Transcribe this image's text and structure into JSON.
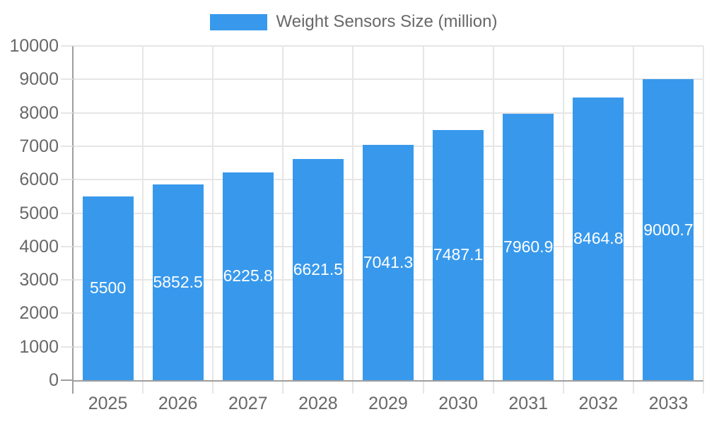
{
  "chart_data": {
    "type": "bar",
    "title": "Weight Sensors Size (million)",
    "legend": {
      "position": "top",
      "label": "Weight Sensors Size (million)"
    },
    "categories": [
      "2025",
      "2026",
      "2027",
      "2028",
      "2029",
      "2030",
      "2031",
      "2032",
      "2033"
    ],
    "series": [
      {
        "name": "Weight Sensors Size (million)",
        "values": [
          5500,
          5852.5,
          6225.8,
          6621.5,
          7041.3,
          7487.1,
          7960.9,
          8464.8,
          9000.7
        ]
      }
    ],
    "data_labels": [
      "5500",
      "5852.5",
      "6225.8",
      "6621.5",
      "7041.3",
      "7487.1",
      "7960.9",
      "8464.8",
      "9000.7"
    ],
    "xlabel": "",
    "ylabel": "",
    "ylim": [
      0,
      10000
    ],
    "yticks": [
      0,
      1000,
      2000,
      3000,
      4000,
      5000,
      6000,
      7000,
      8000,
      9000,
      10000
    ],
    "grid": true,
    "colors": {
      "bar": "#3899EC",
      "data_label": "#FFFFFF",
      "grid": "#E6E6E6",
      "axis": "#9E9E9E",
      "tick_label": "#686868",
      "legend_label": "#686868",
      "background": "#FFFFFF"
    }
  }
}
